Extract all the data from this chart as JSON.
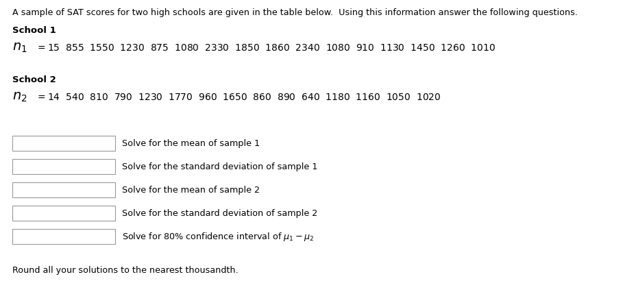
{
  "header": "A sample of SAT scores for two high schools are given in the table below.  Using this information answer the following questions.",
  "school1_label": "School 1",
  "school1_scores": "855  1550  1230  875  1080  2330  1850  1860  2340  1080  910  1130  1450  1260  1010",
  "school2_label": "School 2",
  "school2_scores": "540  810  790  1230  1770  960  1650  860  890  640  1180  1160  1050  1020",
  "questions": [
    "Solve for the mean of sample 1",
    "Solve for the standard deviation of sample 1",
    "Solve for the mean of sample 2",
    "Solve for the standard deviation of sample 2"
  ],
  "footer": "Round all your solutions to the nearest thousandth.",
  "bg_color": "#ffffff",
  "text_color": "#000000",
  "box_edge_color": "#999999",
  "box_fill_color": "#ffffff",
  "fig_width": 9.29,
  "fig_height": 4.26,
  "dpi": 100
}
